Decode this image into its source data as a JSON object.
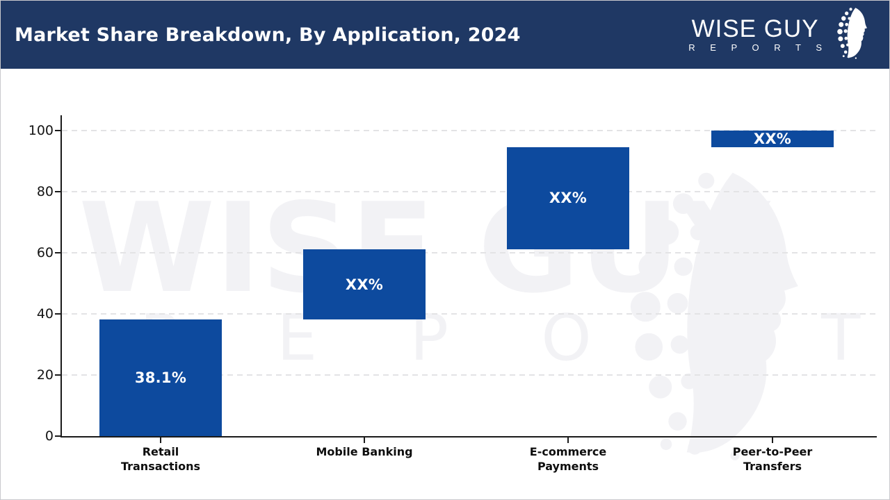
{
  "header": {
    "title": "Market Share Breakdown, By Application, 2024",
    "bg_color": "#1f3864",
    "brand": {
      "line1": "WISE GUY",
      "line2": "R E P O R T S"
    }
  },
  "watermark": {
    "line1": "WISE GUY",
    "line2": "R E P O R T S"
  },
  "chart_data": {
    "type": "bar",
    "subtype": "waterfall",
    "title": "Market Share Breakdown, By Application, 2024",
    "categories": [
      "Retail Transactions",
      "Mobile Banking",
      "E-commerce Payments",
      "Peer-to-Peer Transfers"
    ],
    "tick_labels": [
      [
        "Retail",
        "Transactions"
      ],
      [
        "Mobile Banking"
      ],
      [
        "E-commerce",
        "Payments"
      ],
      [
        "Peer-to-Peer",
        "Transfers"
      ]
    ],
    "segments": [
      {
        "category": "Retail Transactions",
        "start": 0,
        "end": 38.1,
        "value": 38.1,
        "label": "38.1%"
      },
      {
        "category": "Mobile Banking",
        "start": 38.1,
        "end": 61.2,
        "value": 23.1,
        "label": "XX%"
      },
      {
        "category": "E-commerce Payments",
        "start": 61.2,
        "end": 94.5,
        "value": 33.3,
        "label": "XX%"
      },
      {
        "category": "Peer-to-Peer Transfers",
        "start": 94.5,
        "end": 100,
        "value": 5.5,
        "label": "XX%"
      }
    ],
    "y_ticks": [
      0,
      20,
      40,
      60,
      80,
      100
    ],
    "ylim": [
      0,
      105
    ],
    "xlabel": "",
    "ylabel": "",
    "grid": "horizontal-dashed",
    "legend": "none",
    "bar_color": "#0d4a9e",
    "bar_label_color": "#ffffff",
    "grid_color": "#e3e3e5",
    "axis_color": "#1a1a1a"
  }
}
